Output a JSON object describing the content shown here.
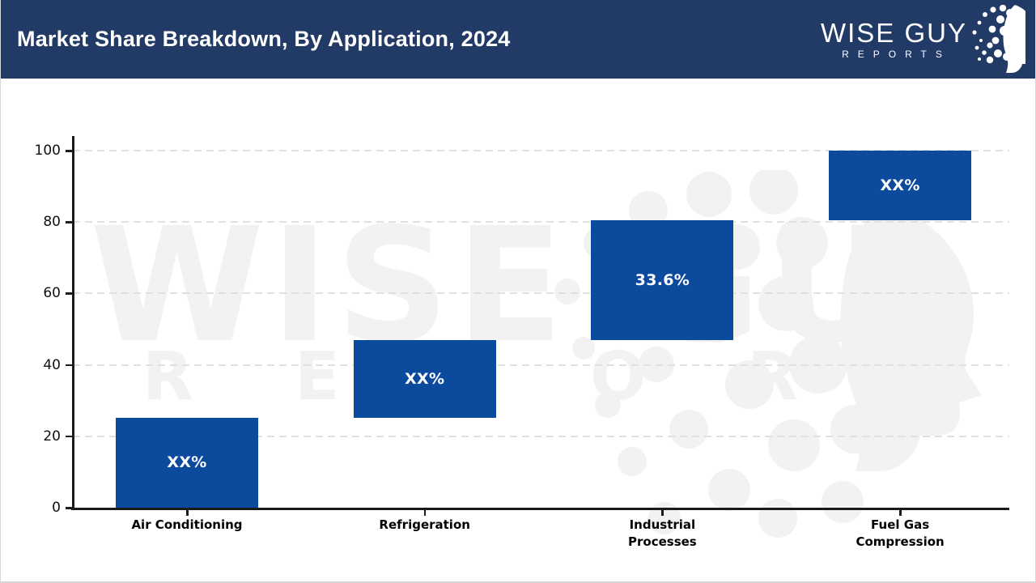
{
  "header": {
    "title": "Market Share Breakdown, By Application, 2024",
    "logo": {
      "brand_top": "WISE GUY",
      "brand_bottom": "REPORTS",
      "head_icon": "dotted-head-profile"
    }
  },
  "watermark": {
    "line1": "WISE GU",
    "line2": "R E P O R T S"
  },
  "colors": {
    "header_bg": "#223a66",
    "bar_blue": "#0c4a9e",
    "grid": "#e0e0e0",
    "axis": "#1a1a1a",
    "watermark": "#f2f2f2"
  },
  "chart_data": {
    "type": "bar",
    "subtype": "waterfall",
    "title": "Market Share Breakdown, By Application, 2024",
    "xlabel": "",
    "ylabel": "",
    "ylim": [
      0,
      100
    ],
    "yticks": [
      0,
      20,
      40,
      60,
      80,
      100
    ],
    "grid": "horizontal-dashed",
    "legend": "none",
    "bar_color": "#0c4a9e",
    "categories": [
      "Air Conditioning",
      "Refrigeration",
      "Industrial Processes",
      "Fuel Gas Compression"
    ],
    "category_label_lines": [
      [
        "Air Conditioning"
      ],
      [
        "Refrigeration"
      ],
      [
        "Industrial",
        "Processes"
      ],
      [
        "Fuel Gas",
        "Compression"
      ]
    ],
    "segments": [
      {
        "category": "Air Conditioning",
        "start": 0,
        "end": 25.2,
        "value": 25.2,
        "value_label": "XX%"
      },
      {
        "category": "Refrigeration",
        "start": 25.2,
        "end": 47.0,
        "value": 21.8,
        "value_label": "XX%"
      },
      {
        "category": "Industrial Processes",
        "start": 47.0,
        "end": 80.6,
        "value": 33.6,
        "value_label": "33.6%"
      },
      {
        "category": "Fuel Gas Compression",
        "start": 80.6,
        "end": 100.0,
        "value": 19.4,
        "value_label": "XX%"
      }
    ]
  }
}
